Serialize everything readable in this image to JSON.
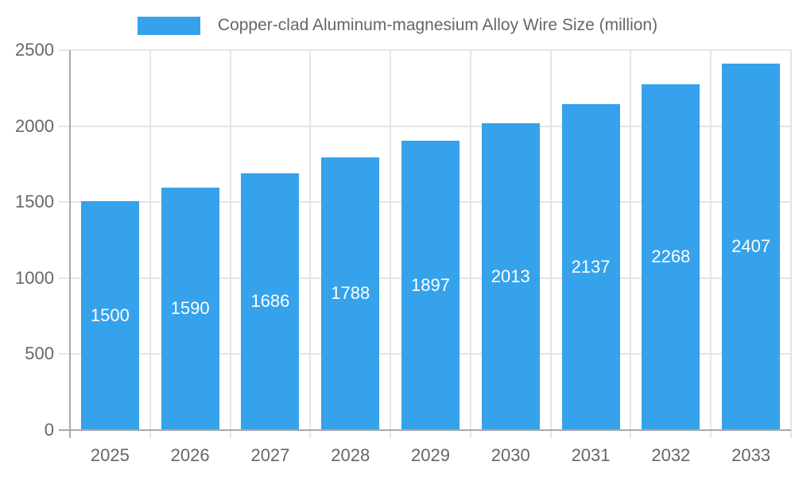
{
  "chart_data": {
    "type": "bar",
    "title": "Copper-clad Aluminum-magnesium Alloy Wire Size (million)",
    "categories": [
      "2025",
      "2026",
      "2027",
      "2028",
      "2029",
      "2030",
      "2031",
      "2032",
      "2033"
    ],
    "series": [
      {
        "name": "Copper-clad Aluminum-magnesium Alloy Wire Size (million)",
        "values": [
          1500,
          1590,
          1686,
          1788,
          1897,
          2013,
          2137,
          2268,
          2407
        ]
      }
    ],
    "values": [
      1500,
      1590,
      1686,
      1788,
      1897,
      2013,
      2137,
      2268,
      2407
    ],
    "xlabel": "",
    "ylabel": "",
    "ylim": [
      0,
      2500
    ],
    "yticks": [
      0,
      500,
      1000,
      1500,
      2000,
      2500
    ],
    "grid": true,
    "legend_position": "top",
    "value_label_position": "inside-center",
    "colors": {
      "bar": "#36A2EB",
      "grid": "#E5E5E5",
      "axis": "#A9A9A9",
      "tick_text": "#666666",
      "value_label_text": "#FFFFFF",
      "background": "#FFFFFF"
    }
  }
}
